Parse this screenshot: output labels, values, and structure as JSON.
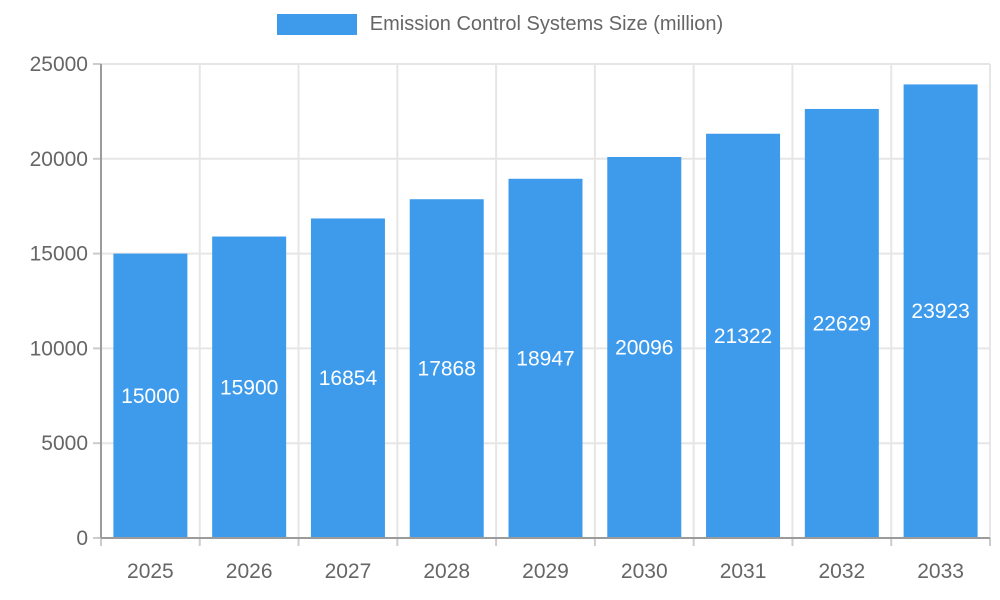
{
  "chart_data": {
    "type": "bar",
    "title": "Emission Control Systems Size (million)",
    "legend": {
      "label": "Emission Control Systems Size (million)",
      "position": "top"
    },
    "categories": [
      "2025",
      "2026",
      "2027",
      "2028",
      "2029",
      "2030",
      "2031",
      "2032",
      "2033"
    ],
    "series": [
      {
        "name": "Emission Control Systems Size (million)",
        "values": [
          15000,
          15900,
          16854,
          17868,
          18947,
          20096,
          21322,
          22629,
          23923
        ]
      }
    ],
    "xlabel": "",
    "ylabel": "",
    "ylim": [
      0,
      25000
    ],
    "yticks": [
      0,
      5000,
      10000,
      15000,
      20000,
      25000
    ],
    "grid": true,
    "value_labels": {
      "visible": true,
      "position": "center-of-bar",
      "color": "#ffffff"
    },
    "colors": {
      "bar": "#3E9BEC",
      "grid": "#e6e6e6",
      "axis": "#9b9b9b",
      "tick": "#cccccc",
      "tick_label": "#666666",
      "legend_label": "#666666",
      "background": "#ffffff"
    }
  }
}
